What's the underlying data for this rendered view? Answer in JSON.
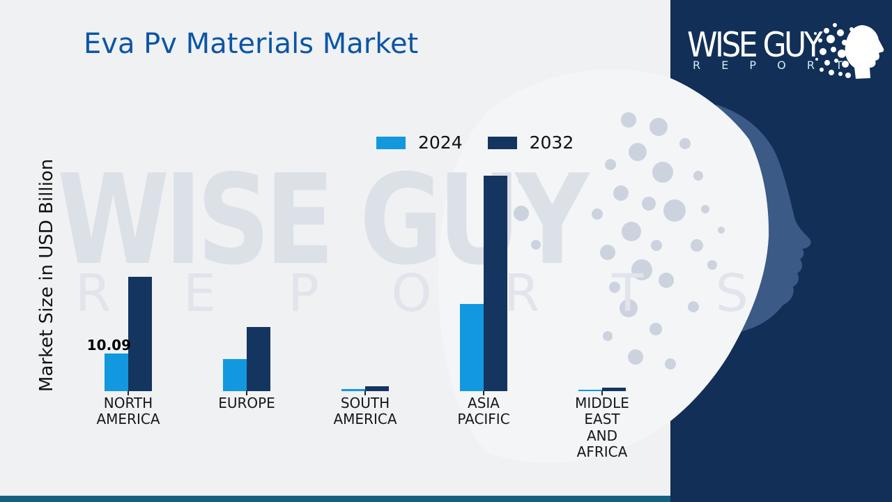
{
  "title": "Eva Pv Materials Market",
  "watermark": {
    "line1": "WISE GUY",
    "line2": "R E P O R T S"
  },
  "logo": {
    "line1": "WISE GUY",
    "line2": "R E P O R T S"
  },
  "colors": {
    "title_blue": "#0c55a5",
    "bar_2024": "#1198df",
    "bar_2032": "#14355f",
    "brand_band": "#122f57",
    "brand_face": "#3c5a86",
    "bottom_bar_teal": "#16607f",
    "watermark_gray": "#dce0e7"
  },
  "chart_data": {
    "type": "bar",
    "title": "Eva Pv Materials Market",
    "ylabel": "Market Size in USD Billion",
    "unit": "USD Billion",
    "categories": [
      "NORTH\nAMERICA",
      "EUROPE",
      "SOUTH\nAMERICA",
      "ASIA\nPACIFIC",
      "MIDDLE\nEAST\nAND\nAFRICA"
    ],
    "series": [
      {
        "name": "2024",
        "color": "#1198df",
        "values": [
          10.09,
          8.6,
          0.6,
          23.4,
          0.45
        ]
      },
      {
        "name": "2032",
        "color": "#14355f",
        "values": [
          30.7,
          17.2,
          1.25,
          57.8,
          0.95
        ]
      }
    ],
    "ylim": [
      0,
      60
    ],
    "grid": false,
    "legend_position": "top-center",
    "annotation_label": "10.09",
    "annotation_note": "value label shown above the 2024 NORTH AMERICA bar"
  }
}
